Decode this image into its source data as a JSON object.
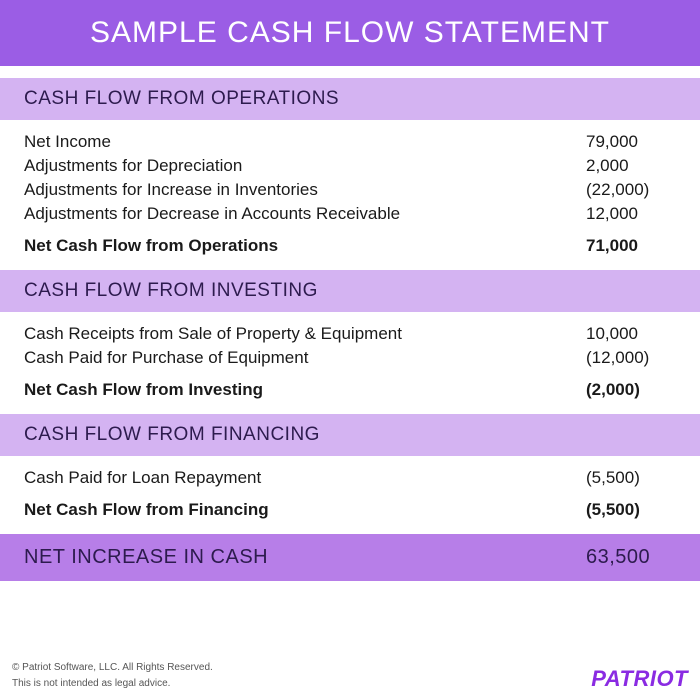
{
  "colors": {
    "title_bg": "#9b5de5",
    "title_text": "#ffffff",
    "section_bg": "#d4b3f2",
    "section_text": "#2d1b4e",
    "row_text": "#1a1a1a",
    "total_bg": "#b77ee8",
    "total_text": "#2d1b4e",
    "logo_color": "#8a2be2"
  },
  "title": "SAMPLE CASH FLOW STATEMENT",
  "sections": [
    {
      "header": "CASH FLOW FROM OPERATIONS",
      "rows": [
        {
          "label": "Net Income",
          "value": "79,000"
        },
        {
          "label": "Adjustments for Depreciation",
          "value": "2,000"
        },
        {
          "label": "Adjustments for Increase in Inventories",
          "value": "(22,000)"
        },
        {
          "label": "Adjustments for Decrease in Accounts Receivable",
          "value": "12,000"
        }
      ],
      "subtotal": {
        "label": "Net Cash Flow from Operations",
        "value": "71,000"
      }
    },
    {
      "header": "CASH FLOW FROM INVESTING",
      "rows": [
        {
          "label": "Cash Receipts from Sale of Property & Equipment",
          "value": "10,000"
        },
        {
          "label": "Cash Paid for Purchase of Equipment",
          "value": "(12,000)"
        }
      ],
      "subtotal": {
        "label": "Net Cash Flow from Investing",
        "value": "(2,000)"
      }
    },
    {
      "header": "CASH FLOW FROM FINANCING",
      "rows": [
        {
          "label": "Cash Paid for Loan Repayment",
          "value": "(5,500)"
        }
      ],
      "subtotal": {
        "label": "Net Cash Flow from Financing",
        "value": "(5,500)"
      }
    }
  ],
  "total": {
    "label": "NET INCREASE IN CASH",
    "value": "63,500"
  },
  "footer": {
    "line1": "© Patriot Software, LLC. All Rights Reserved.",
    "line2": "This is not intended as legal advice.",
    "logo": "PATRIOT"
  }
}
